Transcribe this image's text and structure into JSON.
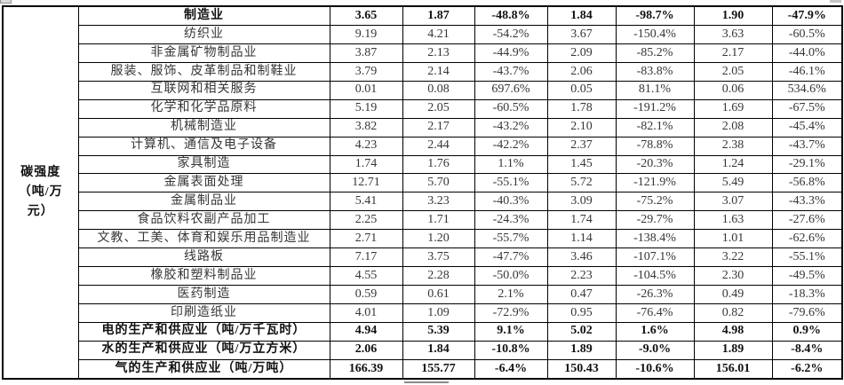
{
  "table": {
    "row_header": "碳强度\n（吨/万\n元）",
    "rows": [
      {
        "name": "制造业",
        "bold": true,
        "values": [
          "3.65",
          "1.87",
          "-48.8%",
          "1.84",
          "-98.7%",
          "1.90",
          "-47.9%"
        ]
      },
      {
        "name": "纺织业",
        "bold": false,
        "values": [
          "9.19",
          "4.21",
          "-54.2%",
          "3.67",
          "-150.4%",
          "3.63",
          "-60.5%"
        ]
      },
      {
        "name": "非金属矿物制品业",
        "bold": false,
        "values": [
          "3.87",
          "2.13",
          "-44.9%",
          "2.09",
          "-85.2%",
          "2.17",
          "-44.0%"
        ]
      },
      {
        "name": "服装、服饰、皮革制品和制鞋业",
        "bold": false,
        "values": [
          "3.79",
          "2.14",
          "-43.7%",
          "2.06",
          "-83.8%",
          "2.05",
          "-46.1%"
        ]
      },
      {
        "name": "互联网和相关服务",
        "bold": false,
        "values": [
          "0.01",
          "0.08",
          "697.6%",
          "0.05",
          "81.1%",
          "0.06",
          "534.6%"
        ]
      },
      {
        "name": "化学和化学品原料",
        "bold": false,
        "values": [
          "5.19",
          "2.05",
          "-60.5%",
          "1.78",
          "-191.2%",
          "1.69",
          "-67.5%"
        ]
      },
      {
        "name": "机械制造业",
        "bold": false,
        "values": [
          "3.82",
          "2.17",
          "-43.2%",
          "2.10",
          "-82.1%",
          "2.08",
          "-45.4%"
        ]
      },
      {
        "name": "计算机、通信及电子设备",
        "bold": false,
        "values": [
          "4.23",
          "2.44",
          "-42.2%",
          "2.37",
          "-78.8%",
          "2.38",
          "-43.7%"
        ]
      },
      {
        "name": "家具制造",
        "bold": false,
        "values": [
          "1.74",
          "1.76",
          "1.1%",
          "1.45",
          "-20.3%",
          "1.24",
          "-29.1%"
        ]
      },
      {
        "name": "金属表面处理",
        "bold": false,
        "values": [
          "12.71",
          "5.70",
          "-55.1%",
          "5.72",
          "-121.9%",
          "5.49",
          "-56.8%"
        ]
      },
      {
        "name": "金属制品业",
        "bold": false,
        "values": [
          "5.41",
          "3.23",
          "-40.3%",
          "3.09",
          "-75.2%",
          "3.07",
          "-43.3%"
        ]
      },
      {
        "name": "食品饮料农副产品加工",
        "bold": false,
        "values": [
          "2.25",
          "1.71",
          "-24.3%",
          "1.74",
          "-29.7%",
          "1.63",
          "-27.6%"
        ]
      },
      {
        "name": "文教、工美、体育和娱乐用品制造业",
        "bold": false,
        "values": [
          "2.71",
          "1.20",
          "-55.7%",
          "1.14",
          "-138.4%",
          "1.01",
          "-62.6%"
        ]
      },
      {
        "name": "线路板",
        "bold": false,
        "values": [
          "7.17",
          "3.75",
          "-47.7%",
          "3.46",
          "-107.1%",
          "3.22",
          "-55.1%"
        ]
      },
      {
        "name": "橡胶和塑料制品业",
        "bold": false,
        "values": [
          "4.55",
          "2.28",
          "-50.0%",
          "2.23",
          "-104.5%",
          "2.30",
          "-49.5%"
        ]
      },
      {
        "name": "医药制造",
        "bold": false,
        "values": [
          "0.59",
          "0.61",
          "2.1%",
          "0.47",
          "-26.3%",
          "0.49",
          "-18.3%"
        ]
      },
      {
        "name": "印刷造纸业",
        "bold": false,
        "values": [
          "4.01",
          "1.09",
          "-72.9%",
          "0.95",
          "-76.4%",
          "0.82",
          "-79.6%"
        ]
      },
      {
        "name": "电的生产和供应业（吨/万千瓦时）",
        "bold": true,
        "values": [
          "4.94",
          "5.39",
          "9.1%",
          "5.02",
          "1.6%",
          "4.98",
          "0.9%"
        ]
      },
      {
        "name": "水的生产和供应业（吨/万立方米）",
        "bold": true,
        "values": [
          "2.06",
          "1.84",
          "-10.8%",
          "1.89",
          "-9.0%",
          "1.89",
          "-8.4%"
        ]
      },
      {
        "name": "气的生产和供应业（吨/万吨）",
        "bold": true,
        "values": [
          "166.39",
          "155.77",
          "-6.4%",
          "150.43",
          "-10.6%",
          "156.01",
          "-6.2%"
        ]
      }
    ]
  }
}
